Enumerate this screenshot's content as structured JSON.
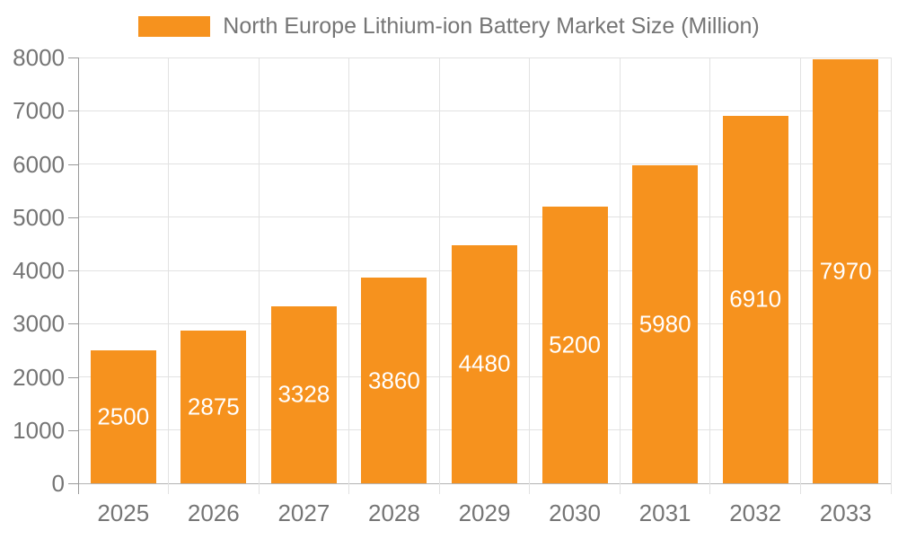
{
  "chart_data": {
    "type": "bar",
    "title": "North Europe Lithium-ion Battery Market Size (Million)",
    "legend": "North Europe Lithium-ion Battery Market Size (Million)",
    "categories": [
      "2025",
      "2026",
      "2027",
      "2028",
      "2029",
      "2030",
      "2031",
      "2032",
      "2033"
    ],
    "values": [
      2500,
      2875,
      3328,
      3860,
      4480,
      5200,
      5980,
      6910,
      7970
    ],
    "xlabel": "",
    "ylabel": "",
    "ylim": [
      0,
      8000
    ],
    "ytick_step": 1000,
    "grid": true,
    "legend_position": "top-center",
    "value_labels": "inside-center",
    "colors": {
      "bar": "#F6921E",
      "gridline": "#E2E2E2",
      "y_axis": "#999999",
      "x_axis": "#B3B3B3",
      "axis_text": "#757575",
      "value_label": "#FFFFFF",
      "background": "#FFFFFF"
    }
  }
}
